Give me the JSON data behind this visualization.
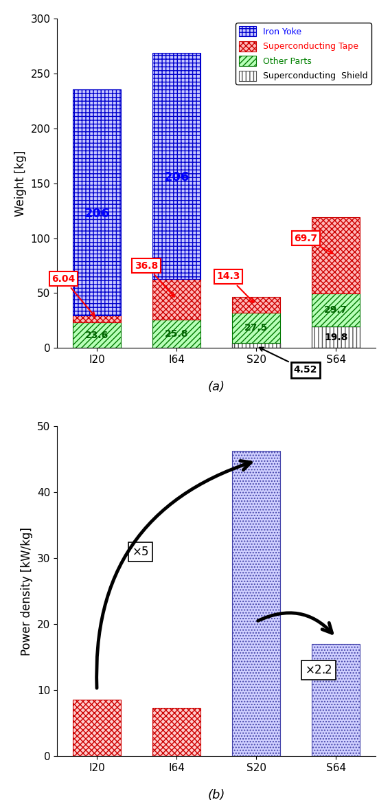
{
  "categories": [
    "I20",
    "I64",
    "S20",
    "S64"
  ],
  "iron_yoke": [
    206,
    206,
    0,
    0
  ],
  "sc_tape": [
    6.04,
    36.8,
    14.3,
    69.7
  ],
  "other_parts": [
    23.6,
    25.8,
    27.5,
    29.7
  ],
  "sc_shield": [
    0,
    0,
    4.52,
    19.8
  ],
  "power_density": [
    8.5,
    7.3,
    46.3,
    17.0
  ],
  "colors": {
    "iron_yoke_face": "#c8c8ff",
    "iron_yoke_edge": "#0000cc",
    "sc_tape_face": "#ffb8b8",
    "sc_tape_edge": "#cc0000",
    "other_parts_face": "#b8ffb8",
    "other_parts_edge": "#007700",
    "sc_shield_face": "#ffffff",
    "sc_shield_edge": "#555555",
    "pd_induction_face": "#ffcccc",
    "pd_induction_edge": "#cc0000",
    "pd_sc_face": "#d0d0ff",
    "pd_sc_edge": "#4444aa"
  },
  "ylabel_a": "Weight [kg]",
  "ylabel_b": "Power density [kW/kg]",
  "ylim_a": [
    0,
    300
  ],
  "ylim_b": [
    0,
    50
  ],
  "yticks_a": [
    0,
    50,
    100,
    150,
    200,
    250,
    300
  ],
  "yticks_b": [
    0,
    10,
    20,
    30,
    40,
    50
  ],
  "label_a": "(a)",
  "label_b": "(b)",
  "legend_labels": [
    "Iron Yoke",
    "Superconducting Tape",
    "Other Parts",
    "Superconducting  Shield"
  ],
  "sc_tape_labels": [
    "6.04",
    "36.8",
    "14.3",
    "69.7"
  ],
  "other_labels": [
    "23.6",
    "25.8",
    "27.5",
    "29.7"
  ],
  "bar_width": 0.6
}
